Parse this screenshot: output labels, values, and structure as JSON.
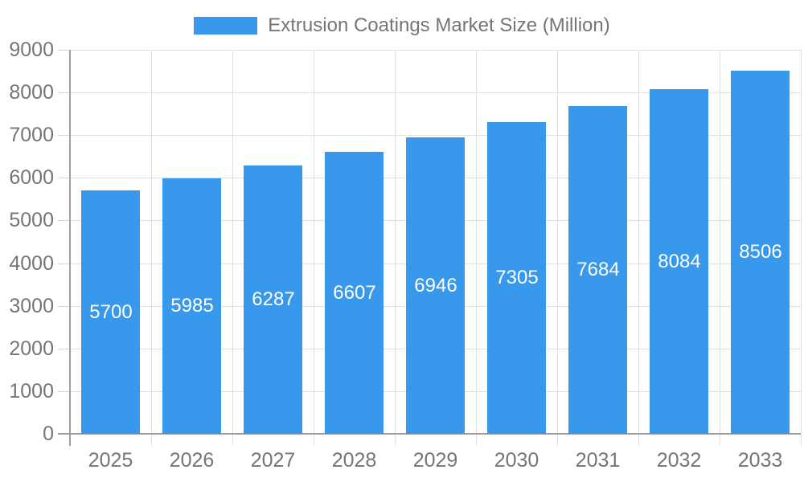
{
  "legend": {
    "label": "Extrusion Coatings Market Size (Million)"
  },
  "chart_data": {
    "type": "bar",
    "title": "Extrusion Coatings Market Size (Million)",
    "categories": [
      "2025",
      "2026",
      "2027",
      "2028",
      "2029",
      "2030",
      "2031",
      "2032",
      "2033"
    ],
    "values": [
      5700,
      5985,
      6287,
      6607,
      6946,
      7305,
      7684,
      8084,
      8506
    ],
    "bar_value_labels": [
      "5700",
      "5985",
      "6287",
      "6607",
      "6946",
      "7305",
      "7684",
      "8084",
      "8506"
    ],
    "xlabel": "",
    "ylabel": "",
    "ylim": [
      0,
      9000
    ],
    "ytick_step": 1000,
    "ytick_labels": [
      "0",
      "1000",
      "2000",
      "3000",
      "4000",
      "5000",
      "6000",
      "7000",
      "8000",
      "9000"
    ],
    "grid": true,
    "legend_position": "top",
    "colors": {
      "bar": "#3899EC",
      "bar_label": "#FFFFFF",
      "axis_text": "#757575",
      "legend_text": "#757575",
      "gridline": "#E0E0E0",
      "axis_line": "#9E9E9E",
      "tick": "#D6D6D6",
      "background": "#FFFFFF"
    }
  }
}
